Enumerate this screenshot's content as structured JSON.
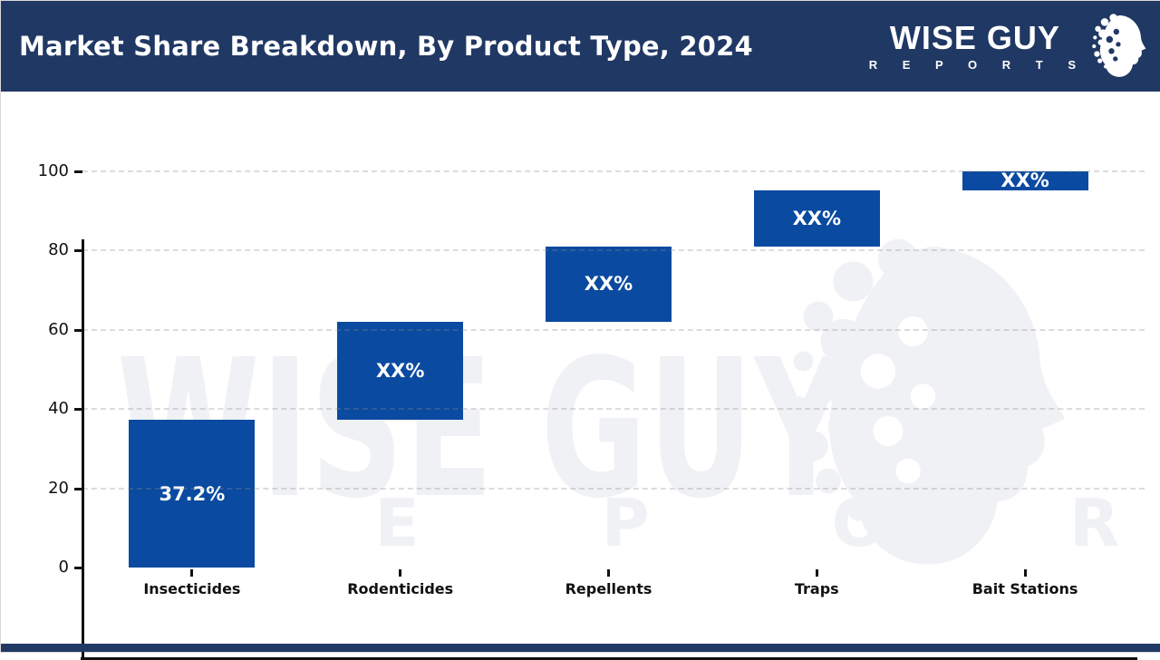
{
  "header": {
    "title": "Market Share Breakdown, By Product Type, 2024",
    "logo": {
      "line1": "WISE GUY",
      "line2": "R E P O R T S"
    }
  },
  "watermark": {
    "line1": "WISE GUY",
    "line2": "R E P O R T S"
  },
  "chart_data": {
    "type": "bar",
    "subtype": "waterfall",
    "title": "Market Share Breakdown, By Product Type, 2024",
    "categories": [
      "Insecticides",
      "Rodenticides",
      "Repellents",
      "Traps",
      "Bait Stations"
    ],
    "segments": [
      {
        "category": "Insecticides",
        "start": 0,
        "end": 37.2,
        "label": "37.2%"
      },
      {
        "category": "Rodenticides",
        "start": 37.2,
        "end": 62,
        "label": "XX%"
      },
      {
        "category": "Repellents",
        "start": 62,
        "end": 81,
        "label": "XX%"
      },
      {
        "category": "Traps",
        "start": 81,
        "end": 95,
        "label": "XX%"
      },
      {
        "category": "Bait Stations",
        "start": 95,
        "end": 100,
        "label": "XX%"
      }
    ],
    "y_ticks": [
      0,
      20,
      40,
      60,
      80,
      100
    ],
    "ylim": [
      0,
      105
    ],
    "grid": "dashed-horizontal",
    "legend": "none",
    "bar_color": "#0a4aa0",
    "label_color": "#ffffff"
  },
  "colors": {
    "header_navy": "#203864",
    "bar_blue": "#0a4aa0",
    "grid_gray": "#d8d8d8",
    "watermark_gray": "#f0f1f4",
    "axis_black": "#111111"
  }
}
